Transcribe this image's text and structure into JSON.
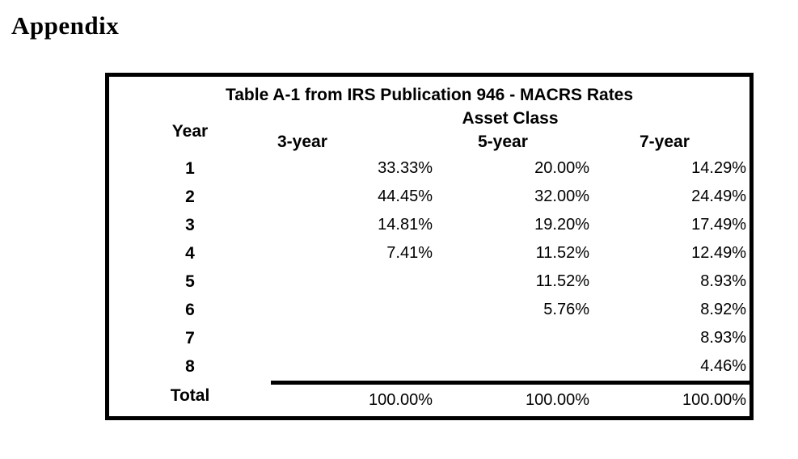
{
  "page": {
    "heading": "Appendix"
  },
  "table": {
    "title": "Table A-1 from IRS Publication 946 - MACRS Rates",
    "year_header": "Year",
    "asset_class_header": "Asset Class",
    "columns": [
      "3-year",
      "5-year",
      "7-year"
    ],
    "rows": [
      {
        "year": "1",
        "values": [
          "33.33%",
          "20.00%",
          "14.29%"
        ]
      },
      {
        "year": "2",
        "values": [
          "44.45%",
          "32.00%",
          "24.49%"
        ]
      },
      {
        "year": "3",
        "values": [
          "14.81%",
          "19.20%",
          "17.49%"
        ]
      },
      {
        "year": "4",
        "values": [
          "7.41%",
          "11.52%",
          "12.49%"
        ]
      },
      {
        "year": "5",
        "values": [
          "",
          "11.52%",
          "8.93%"
        ]
      },
      {
        "year": "6",
        "values": [
          "",
          "5.76%",
          "8.92%"
        ]
      },
      {
        "year": "7",
        "values": [
          "",
          "",
          "8.93%"
        ]
      },
      {
        "year": "8",
        "values": [
          "",
          "",
          "4.46%"
        ]
      },
      {
        "year": "Total",
        "values": [
          "100.00%",
          "100.00%",
          "100.00%"
        ]
      }
    ]
  }
}
